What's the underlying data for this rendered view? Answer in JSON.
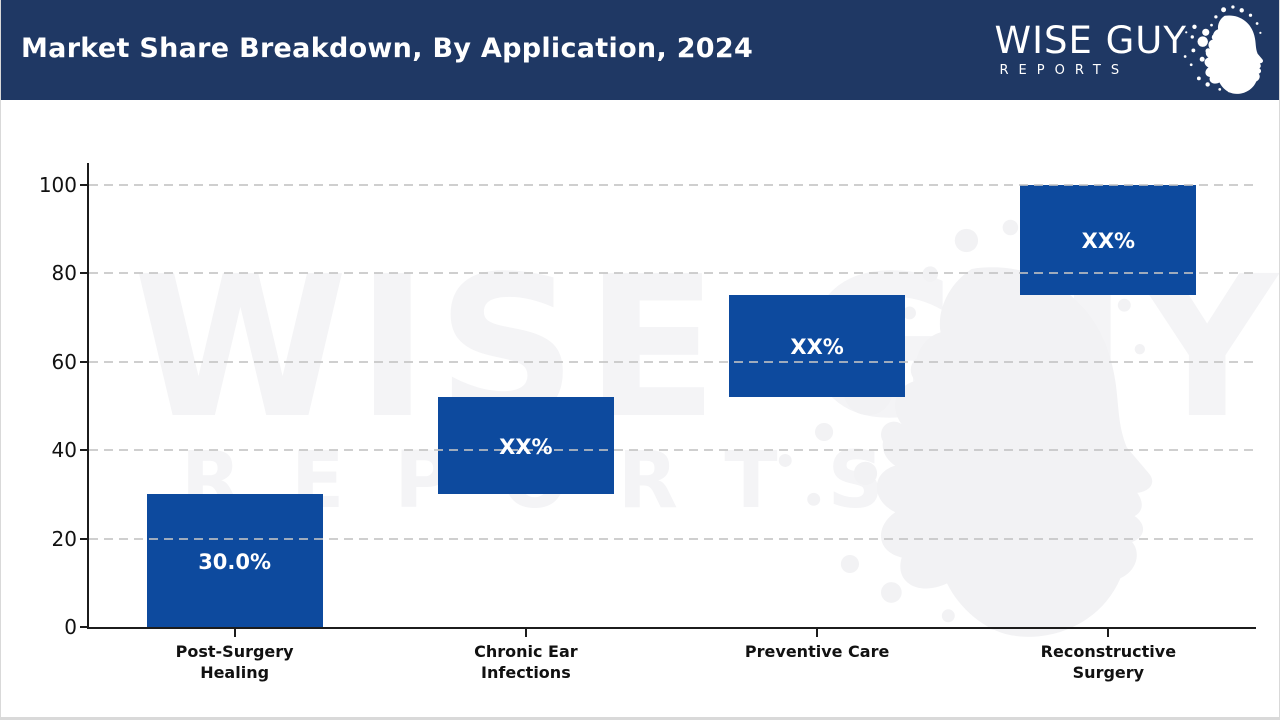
{
  "header": {
    "logo": {
      "wordmark": "WISE GUY",
      "subtitle": "REPORTS"
    }
  },
  "watermark": {
    "wordmark": "WISE GUY",
    "subtitle": "REPORTS"
  },
  "chart_data": {
    "type": "bar",
    "variant": "waterfall",
    "title": "Market Share Breakdown, By Application, 2024",
    "categories": [
      "Post-Surgery\nHealing",
      "Chronic Ear\nInfections",
      "Preventive Care",
      "Reconstructive\nSurgery"
    ],
    "segments": [
      {
        "category": "Post-Surgery Healing",
        "start": 0,
        "end": 30,
        "label": "30.0%",
        "value_shown": "30.0%"
      },
      {
        "category": "Chronic Ear Infections",
        "start": 30,
        "end": 52,
        "label": "XX%",
        "value_shown": "masked"
      },
      {
        "category": "Preventive Care",
        "start": 52,
        "end": 75,
        "label": "XX%",
        "value_shown": "masked"
      },
      {
        "category": "Reconstructive Surgery",
        "start": 75,
        "end": 100,
        "label": "XX%",
        "value_shown": "masked"
      }
    ],
    "xlabel": "",
    "ylabel": "",
    "y_ticks": [
      0,
      20,
      40,
      60,
      80,
      100
    ],
    "ylim": [
      0,
      104.5
    ],
    "grid": "horizontal-dashed",
    "legend": "none",
    "bar_color": "#0d4a9e",
    "bar_label_color": "#ffffff"
  },
  "colors": {
    "header_bg": "#1f3864",
    "bar_blue": "#0d4a9e",
    "grid_gray": "#c9c9c9",
    "axis_black": "#1c1c1c",
    "watermark_gray": "#f4f4f6",
    "border_gray": "#d9d9d9"
  }
}
